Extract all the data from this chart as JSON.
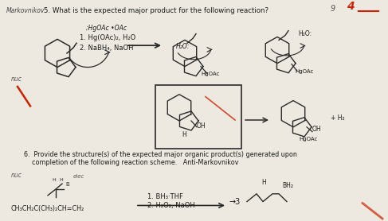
{
  "bg_color": "#ede9e0",
  "q5_label": "5. What is the expected major product for the following reaction?",
  "markovnikov": "Markovnikov",
  "reagents_above": ";HgOAc •OAc",
  "reagents1": "1. Hg(OAc)₂, H₂O",
  "reagents2": "2. NaBH₄, NaOH",
  "h2o_label": "H₂O:",
  "hgoac1": "HgOAc",
  "h2o2": "H₂O:",
  "hgoac2": "HgOAc",
  "oh_box": "OH",
  "h_box": "H",
  "oh_right": "OH",
  "hgoac_right": "HgOAc",
  "plus_h2": "+ H₂",
  "nuc1": "nuc",
  "nuc2": "nuc",
  "elec": "elec",
  "q6_line1": "6.  Provide the structure(s) of the expected major organic product(s) generated upon",
  "q6_line2": "    completion of the following reaction scheme.   Anti-Markovnikov",
  "mol6": "CH₃CH₂C(CH₃)₂CH=CH₂",
  "reagent6a": "1. BH₃·THF",
  "reagent6b": "2. H₂O₂, NaOH",
  "bh2": "BH₂",
  "h_product": "H",
  "num4": "4",
  "num9": "9"
}
